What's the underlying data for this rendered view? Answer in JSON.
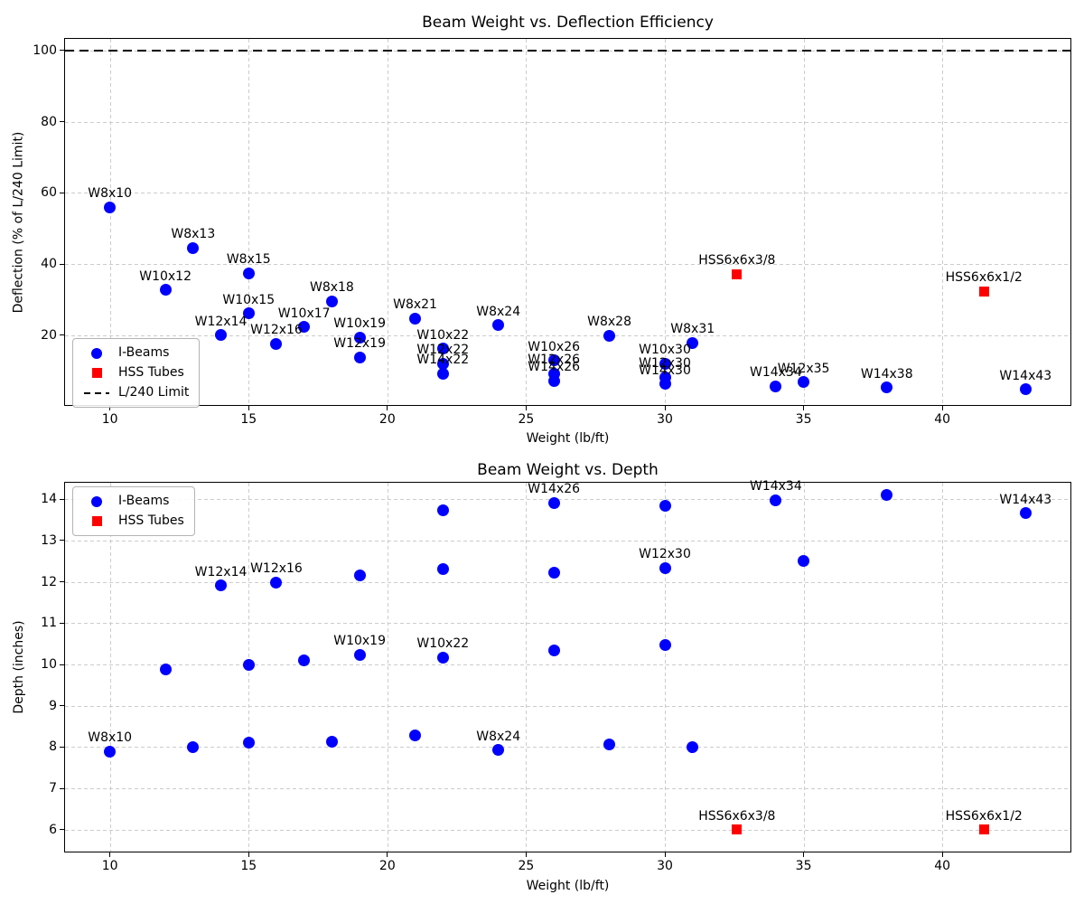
{
  "colors": {
    "ibeam": "#0000ff",
    "hss": "#ff0000",
    "limit": "#000000",
    "grid": "#cccccc"
  },
  "chart_data": [
    {
      "type": "scatter",
      "title": "Beam Weight vs. Deflection Efficiency",
      "xlabel": "Weight (lb/ft)",
      "ylabel": "Deflection (% of L/240 Limit)",
      "xlim": [
        8.35,
        44.65
      ],
      "ylim": [
        0.2,
        103.5
      ],
      "xticks": [
        10,
        15,
        20,
        25,
        30,
        35,
        40
      ],
      "yticks": [
        20,
        40,
        60,
        80,
        100
      ],
      "grid": true,
      "legend": {
        "position": "lower left",
        "entries": [
          {
            "label": "I-Beams",
            "marker": "circle",
            "color": "#0000ff"
          },
          {
            "label": "HSS Tubes",
            "marker": "square",
            "color": "#ff0000"
          },
          {
            "label": "L/240 Limit",
            "marker": "dashed-line",
            "color": "#000000"
          }
        ]
      },
      "limit_line": {
        "y": 100,
        "label": "L/240 Limit",
        "color": "#000000",
        "style": "dashed"
      },
      "series": [
        {
          "name": "I-Beams",
          "marker": "circle",
          "color": "#0000ff",
          "points": [
            {
              "name": "W8x10",
              "x": 10,
              "y": 56.0,
              "show_label": true
            },
            {
              "name": "W10x12",
              "x": 12,
              "y": 32.7,
              "show_label": true
            },
            {
              "name": "W8x13",
              "x": 13,
              "y": 44.5,
              "show_label": true
            },
            {
              "name": "W12x14",
              "x": 14,
              "y": 20.0,
              "show_label": true
            },
            {
              "name": "W8x15",
              "x": 15,
              "y": 37.5,
              "show_label": true
            },
            {
              "name": "W10x15",
              "x": 15,
              "y": 26.1,
              "show_label": true
            },
            {
              "name": "W12x16",
              "x": 16,
              "y": 17.6,
              "show_label": true
            },
            {
              "name": "W10x17",
              "x": 17,
              "y": 22.3,
              "show_label": true
            },
            {
              "name": "W8x18",
              "x": 18,
              "y": 29.6,
              "show_label": true
            },
            {
              "name": "W10x19",
              "x": 19,
              "y": 19.4,
              "show_label": true
            },
            {
              "name": "W12x19",
              "x": 19,
              "y": 13.9,
              "show_label": true
            },
            {
              "name": "W8x21",
              "x": 21,
              "y": 24.7,
              "show_label": true
            },
            {
              "name": "W10x22",
              "x": 22,
              "y": 16.3,
              "show_label": true
            },
            {
              "name": "W12x22",
              "x": 22,
              "y": 12.1,
              "show_label": true
            },
            {
              "name": "W14x22",
              "x": 22,
              "y": 9.3,
              "show_label": true
            },
            {
              "name": "W8x24",
              "x": 24,
              "y": 22.9,
              "show_label": true
            },
            {
              "name": "W10x26",
              "x": 26,
              "y": 13.0,
              "show_label": true
            },
            {
              "name": "W12x26",
              "x": 26,
              "y": 9.3,
              "show_label": true
            },
            {
              "name": "W14x26",
              "x": 26,
              "y": 7.2,
              "show_label": true
            },
            {
              "name": "W8x28",
              "x": 28,
              "y": 19.9,
              "show_label": true
            },
            {
              "name": "W10x30",
              "x": 30,
              "y": 12.1,
              "show_label": true
            },
            {
              "name": "W12x30",
              "x": 30,
              "y": 8.3,
              "show_label": true
            },
            {
              "name": "W14x30",
              "x": 30,
              "y": 6.4,
              "show_label": true
            },
            {
              "name": "W8x31",
              "x": 31,
              "y": 17.9,
              "show_label": true
            },
            {
              "name": "W14x34",
              "x": 34,
              "y": 5.7,
              "show_label": true
            },
            {
              "name": "W12x35",
              "x": 35,
              "y": 6.9,
              "show_label": true
            },
            {
              "name": "W14x38",
              "x": 38,
              "y": 5.3,
              "show_label": true
            },
            {
              "name": "W14x43",
              "x": 43,
              "y": 4.8,
              "show_label": true
            }
          ]
        },
        {
          "name": "HSS Tubes",
          "marker": "square",
          "color": "#ff0000",
          "points": [
            {
              "name": "HSS6x6x3/8",
              "x": 32.6,
              "y": 37.2,
              "show_label": true
            },
            {
              "name": "HSS6x6x1/2",
              "x": 41.5,
              "y": 32.4,
              "show_label": true
            }
          ]
        }
      ]
    },
    {
      "type": "scatter",
      "title": "Beam Weight vs. Depth",
      "xlabel": "Weight (lb/ft)",
      "ylabel": "Depth (inches)",
      "xlim": [
        8.35,
        44.65
      ],
      "ylim": [
        5.45,
        14.42
      ],
      "xticks": [
        10,
        15,
        20,
        25,
        30,
        35,
        40
      ],
      "yticks": [
        6,
        7,
        8,
        9,
        10,
        11,
        12,
        13,
        14
      ],
      "grid": true,
      "legend": {
        "position": "upper left",
        "entries": [
          {
            "label": "I-Beams",
            "marker": "circle",
            "color": "#0000ff"
          },
          {
            "label": "HSS Tubes",
            "marker": "square",
            "color": "#ff0000"
          }
        ]
      },
      "series": [
        {
          "name": "I-Beams",
          "marker": "circle",
          "color": "#0000ff",
          "points": [
            {
              "name": "W8x10",
              "x": 10,
              "y": 7.89,
              "show_label": true
            },
            {
              "name": "W10x12",
              "x": 12,
              "y": 9.87,
              "show_label": false
            },
            {
              "name": "W8x13",
              "x": 13,
              "y": 7.99,
              "show_label": false
            },
            {
              "name": "W12x14",
              "x": 14,
              "y": 11.91,
              "show_label": true
            },
            {
              "name": "W8x15",
              "x": 15,
              "y": 8.11,
              "show_label": false
            },
            {
              "name": "W10x15",
              "x": 15,
              "y": 9.99,
              "show_label": false
            },
            {
              "name": "W12x16",
              "x": 16,
              "y": 11.99,
              "show_label": true
            },
            {
              "name": "W10x17",
              "x": 17,
              "y": 10.11,
              "show_label": false
            },
            {
              "name": "W8x18",
              "x": 18,
              "y": 8.14,
              "show_label": false
            },
            {
              "name": "W10x19",
              "x": 19,
              "y": 10.24,
              "show_label": true
            },
            {
              "name": "W12x19",
              "x": 19,
              "y": 12.16,
              "show_label": false
            },
            {
              "name": "W8x21",
              "x": 21,
              "y": 8.28,
              "show_label": false
            },
            {
              "name": "W10x22",
              "x": 22,
              "y": 10.17,
              "show_label": true
            },
            {
              "name": "W12x22",
              "x": 22,
              "y": 12.31,
              "show_label": false
            },
            {
              "name": "W14x22",
              "x": 22,
              "y": 13.74,
              "show_label": false
            },
            {
              "name": "W8x24",
              "x": 24,
              "y": 7.93,
              "show_label": true
            },
            {
              "name": "W10x26",
              "x": 26,
              "y": 10.33,
              "show_label": false
            },
            {
              "name": "W12x26",
              "x": 26,
              "y": 12.22,
              "show_label": false
            },
            {
              "name": "W14x26",
              "x": 26,
              "y": 13.91,
              "show_label": true
            },
            {
              "name": "W8x28",
              "x": 28,
              "y": 8.06,
              "show_label": false
            },
            {
              "name": "W10x30",
              "x": 30,
              "y": 10.47,
              "show_label": false
            },
            {
              "name": "W12x30",
              "x": 30,
              "y": 12.34,
              "show_label": true
            },
            {
              "name": "W14x30",
              "x": 30,
              "y": 13.84,
              "show_label": false
            },
            {
              "name": "W8x31",
              "x": 31,
              "y": 8.0,
              "show_label": false
            },
            {
              "name": "W14x34",
              "x": 34,
              "y": 13.98,
              "show_label": true
            },
            {
              "name": "W12x35",
              "x": 35,
              "y": 12.5,
              "show_label": false
            },
            {
              "name": "W14x38",
              "x": 38,
              "y": 14.1,
              "show_label": false
            },
            {
              "name": "W14x43",
              "x": 43,
              "y": 13.66,
              "show_label": true
            }
          ]
        },
        {
          "name": "HSS Tubes",
          "marker": "square",
          "color": "#ff0000",
          "points": [
            {
              "name": "HSS6x6x3/8",
              "x": 32.6,
              "y": 6.0,
              "show_label": true
            },
            {
              "name": "HSS6x6x1/2",
              "x": 41.5,
              "y": 6.0,
              "show_label": true
            }
          ]
        }
      ]
    }
  ]
}
